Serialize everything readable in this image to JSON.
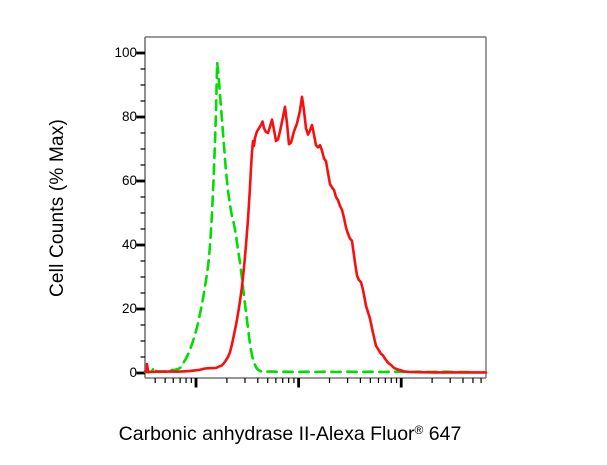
{
  "figure": {
    "y_axis_title": "Cell Counts (% Max)",
    "x_axis_title_prefix": "Carbonic anhydrase II-Alexa Fluor",
    "x_axis_title_sup": "®",
    "x_axis_title_suffix": " 647"
  },
  "colors": {
    "background": "#ffffff",
    "frame": "#757575",
    "tick": "#000000",
    "text": "#000000",
    "red_curve": "#f80f0f",
    "green_curve": "#00dd00"
  },
  "chart_data": {
    "type": "line",
    "title": "",
    "xlabel": "Carbonic anhydrase II-Alexa Fluor® 647",
    "ylabel": "Cell Counts (% Max)",
    "x_scale": "log",
    "x_numeric_labels_visible": false,
    "x_units": "fluorescence intensity (log scale, unlabeled decade ticks)",
    "x_axis_decades": {
      "first_major_frac": 0.1496,
      "decade_width_frac": 0.3009
    },
    "ylim": [
      0,
      100
    ],
    "y_major_ticks": [
      0,
      20,
      40,
      60,
      80,
      100
    ],
    "y_minor_step": 5,
    "grid": false,
    "legend": "none",
    "series": [
      {
        "name": "green_dashed_control",
        "style": "dashed",
        "color": "#00dd00",
        "peak": {
          "x_frac": 0.211,
          "y": 97
        },
        "points": [
          [
            0,
            0.3
          ],
          [
            4,
            0.2
          ],
          [
            7,
            0.5
          ],
          [
            9,
            1.8
          ],
          [
            11,
            0.6
          ],
          [
            14,
            0.3
          ],
          [
            20,
            0.5
          ],
          [
            25,
            0.9
          ],
          [
            30,
            1
          ],
          [
            33,
            1.2
          ],
          [
            36,
            1.8
          ],
          [
            38,
            3
          ],
          [
            41,
            4.5
          ],
          [
            44,
            6.5
          ],
          [
            47,
            9
          ],
          [
            50,
            12
          ],
          [
            53,
            15.5
          ],
          [
            55,
            18.5
          ],
          [
            57,
            21.5
          ],
          [
            59,
            25
          ],
          [
            61,
            29
          ],
          [
            62.5,
            32
          ],
          [
            64,
            36
          ],
          [
            65.5,
            42
          ],
          [
            67,
            50
          ],
          [
            68.5,
            60
          ],
          [
            70,
            72
          ],
          [
            71,
            82
          ],
          [
            71.6,
            90
          ],
          [
            72.2,
            97
          ],
          [
            73.5,
            93
          ],
          [
            75,
            87
          ],
          [
            77,
            79
          ],
          [
            79,
            71
          ],
          [
            81,
            63
          ],
          [
            83,
            57
          ],
          [
            85,
            52.5
          ],
          [
            87,
            49
          ],
          [
            89,
            46.5
          ],
          [
            91,
            43
          ],
          [
            93,
            38.5
          ],
          [
            95,
            34.5
          ],
          [
            97,
            29.5
          ],
          [
            99,
            24
          ],
          [
            101,
            19
          ],
          [
            103,
            14
          ],
          [
            105,
            9
          ],
          [
            107,
            5.5
          ],
          [
            109,
            3.2
          ],
          [
            111,
            1.8
          ],
          [
            113,
            1
          ],
          [
            116,
            0.5
          ],
          [
            121,
            0.4
          ],
          [
            127,
            0.5
          ],
          [
            134,
            0.3
          ],
          [
            142,
            0.4
          ],
          [
            151,
            0.3
          ],
          [
            160,
            0.4
          ],
          [
            170,
            0.3
          ],
          [
            181,
            0.4
          ],
          [
            192,
            0.3
          ],
          [
            203,
            0.4
          ],
          [
            214,
            0.3
          ],
          [
            226,
            0.4
          ],
          [
            238,
            0.3
          ],
          [
            250,
            0.4
          ],
          [
            262,
            0.3
          ],
          [
            274,
            0.4
          ],
          [
            286,
            0.3
          ],
          [
            298,
            0.4
          ],
          [
            310,
            0.3
          ],
          [
            320,
            0.3
          ],
          [
            326,
            0.25
          ]
        ]
      },
      {
        "name": "red_solid_sample",
        "style": "solid",
        "color": "#f80f0f",
        "peak": {
          "x_frac": 0.46,
          "y": 86.3
        },
        "points": [
          [
            0,
            0.4
          ],
          [
            1.5,
            0.3
          ],
          [
            2,
            2.8
          ],
          [
            3,
            0.4
          ],
          [
            8,
            0.3
          ],
          [
            14,
            0.5
          ],
          [
            20,
            0.4
          ],
          [
            26,
            0.5
          ],
          [
            32,
            0.4
          ],
          [
            38,
            0.5
          ],
          [
            44,
            0.6
          ],
          [
            50,
            0.8
          ],
          [
            55,
            1
          ],
          [
            60,
            1.4
          ],
          [
            64,
            1.5
          ],
          [
            68,
            1.5
          ],
          [
            71,
            1.6
          ],
          [
            74,
            2
          ],
          [
            77,
            2.4
          ],
          [
            80,
            3.5
          ],
          [
            83,
            5
          ],
          [
            85,
            6.5
          ],
          [
            87,
            9
          ],
          [
            89,
            12
          ],
          [
            91,
            15
          ],
          [
            93,
            18.5
          ],
          [
            95,
            22.5
          ],
          [
            97,
            27
          ],
          [
            99,
            33
          ],
          [
            101,
            40
          ],
          [
            103,
            48
          ],
          [
            105,
            58
          ],
          [
            106,
            64
          ],
          [
            107,
            69
          ],
          [
            108,
            72.5
          ],
          [
            109,
            71
          ],
          [
            110,
            73.5
          ],
          [
            112,
            75.5
          ],
          [
            114,
            76.5
          ],
          [
            116,
            77.5
          ],
          [
            117.5,
            78.6
          ],
          [
            119,
            76.5
          ],
          [
            121,
            75.3
          ],
          [
            123,
            75
          ],
          [
            125,
            77
          ],
          [
            127,
            79.2
          ],
          [
            129,
            76
          ],
          [
            131,
            72.5
          ],
          [
            133,
            73
          ],
          [
            135,
            75.5
          ],
          [
            138,
            80
          ],
          [
            140,
            83.2
          ],
          [
            142,
            78
          ],
          [
            144,
            71.5
          ],
          [
            146,
            72
          ],
          [
            149,
            75.5
          ],
          [
            152,
            78
          ],
          [
            155,
            82
          ],
          [
            157,
            86.3
          ],
          [
            159,
            82
          ],
          [
            161,
            76.5
          ],
          [
            163,
            74.5
          ],
          [
            165,
            75.8
          ],
          [
            167,
            77.5
          ],
          [
            169,
            74.5
          ],
          [
            171,
            71.2
          ],
          [
            173,
            70.5
          ],
          [
            175,
            71.2
          ],
          [
            177,
            69.5
          ],
          [
            179,
            67
          ],
          [
            181,
            66.2
          ],
          [
            183,
            62.5
          ],
          [
            185,
            59
          ],
          [
            187,
            58
          ],
          [
            189,
            57.2
          ],
          [
            191,
            55
          ],
          [
            193,
            54
          ],
          [
            195,
            52.2
          ],
          [
            197,
            51
          ],
          [
            199,
            48.5
          ],
          [
            201,
            45.5
          ],
          [
            203,
            43.5
          ],
          [
            205,
            42
          ],
          [
            207,
            41.3
          ],
          [
            208,
            39
          ],
          [
            210,
            34.5
          ],
          [
            212,
            30.5
          ],
          [
            214,
            29
          ],
          [
            216,
            28.4
          ],
          [
            218,
            26
          ],
          [
            221,
            21
          ],
          [
            223,
            19
          ],
          [
            225,
            17
          ],
          [
            228,
            12.5
          ],
          [
            231,
            8.5
          ],
          [
            234,
            7
          ],
          [
            236,
            6
          ],
          [
            238,
            5.5
          ],
          [
            240,
            4.5
          ],
          [
            243,
            3.2
          ],
          [
            246,
            2.5
          ],
          [
            249,
            1.6
          ],
          [
            252,
            1.2
          ],
          [
            255,
            0.9
          ],
          [
            259,
            0.5
          ],
          [
            265,
            0.3
          ],
          [
            275,
            0.25
          ],
          [
            290,
            0.2
          ],
          [
            310,
            0.2
          ],
          [
            330,
            0.2
          ],
          [
            341,
            0.2
          ]
        ]
      }
    ],
    "points_x_units": "plot-relative px along 341px-wide log axis",
    "points_y_units": "% Max"
  }
}
